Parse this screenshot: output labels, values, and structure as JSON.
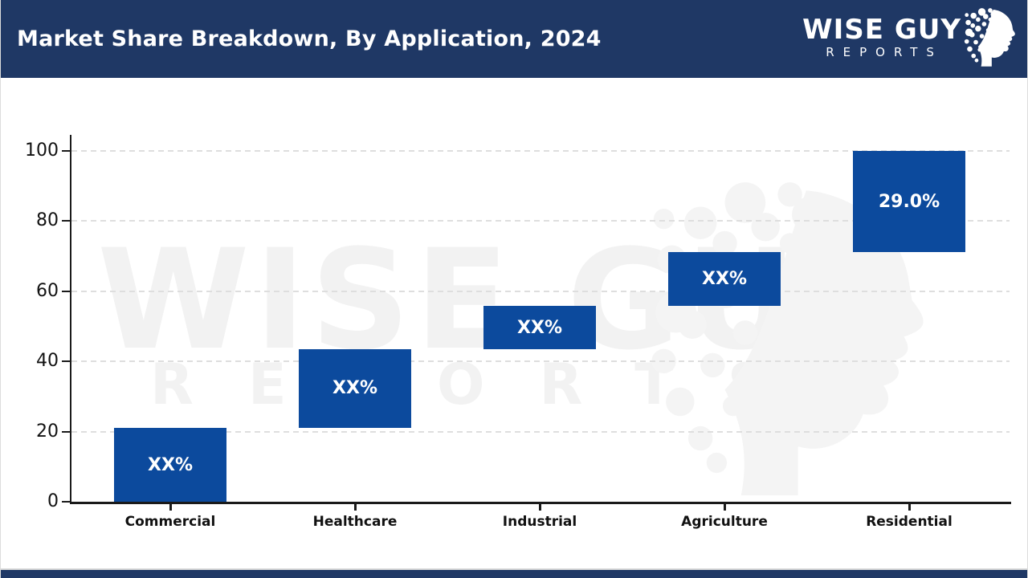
{
  "header": {
    "title": "Market Share Breakdown, By Application, 2024",
    "logo": {
      "brand_top": "WISE GUY",
      "brand_bottom": "REPORTS",
      "face_icon": "dotted-head-profile"
    }
  },
  "watermark": {
    "line1": "WISE GUY",
    "line2": "REPORTS",
    "face_icon": "dotted-head-profile"
  },
  "colors": {
    "header_bg": "#1F3865",
    "footer_bg": "#1F3865",
    "bar_blue": "#0C4A9D",
    "gridline": "#DEDEDE",
    "watermark_gray": "#F2F2F2",
    "axis_black": "#1a1a1a"
  },
  "chart_data": {
    "type": "bar",
    "subtype": "floating-segment-waterfall",
    "title": "Market Share Breakdown, By Application, 2024",
    "categories": [
      "Commercial",
      "Healthcare",
      "Industrial",
      "Agriculture",
      "Residential"
    ],
    "segments": [
      [
        0,
        21
      ],
      [
        21,
        43.5
      ],
      [
        43.5,
        55.7
      ],
      [
        55.7,
        71
      ],
      [
        71,
        100
      ]
    ],
    "values_pct": [
      21.0,
      22.5,
      12.2,
      15.3,
      29.0
    ],
    "bar_labels": [
      "XX%",
      "XX%",
      "XX%",
      "XX%",
      "29.0%"
    ],
    "yticks": [
      0,
      20,
      40,
      60,
      80,
      100
    ],
    "ylim": [
      0,
      105
    ],
    "xlabel": "",
    "ylabel": "",
    "grid": "horizontal-dashed",
    "legend": "none"
  }
}
